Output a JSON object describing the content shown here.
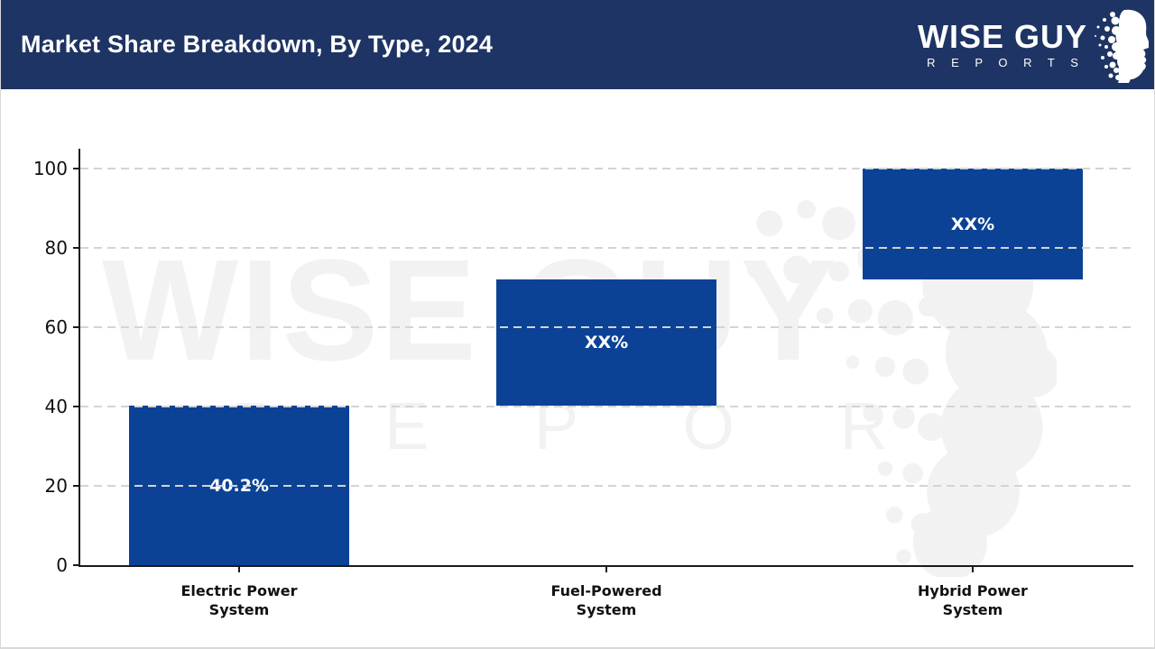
{
  "header": {
    "title": "Market Share Breakdown, By Type, 2024",
    "logo": {
      "brand_line1": "WISE GUY",
      "brand_line2": "R E P O R T S",
      "head_icon": "dotted-face-profile"
    }
  },
  "watermark": {
    "line1": "WISE GUY",
    "line2": "R E P O R T S",
    "head_icon": "dotted-face-profile"
  },
  "chart_data": {
    "type": "bar",
    "variant": "waterfall",
    "title": "Market Share Breakdown, By Type, 2024",
    "categories": [
      "Electric Power\nSystem",
      "Fuel-Powered\nSystem",
      "Hybrid Power\nSystem"
    ],
    "bars": [
      {
        "category": "Electric Power\nSystem",
        "start": 0,
        "end": 40.2,
        "label": "40.2%"
      },
      {
        "category": "Fuel-Powered\nSystem",
        "start": 40.2,
        "end": 72,
        "label": "XX%"
      },
      {
        "category": "Hybrid Power\nSystem",
        "start": 72,
        "end": 100,
        "label": "XX%"
      }
    ],
    "ylabel": "",
    "xlabel": "",
    "ylim": [
      0,
      100
    ],
    "yticks": [
      0,
      20,
      40,
      60,
      80,
      100
    ],
    "grid": "horizontal-dashed",
    "legend": "none",
    "bar_color": "#0b4296",
    "bar_label_color": "#ffffff",
    "axis_color": "#1a1a1a",
    "grid_color": "#d4d4d4"
  },
  "colors": {
    "header_bg": "#1e3464",
    "page_bg": "#ffffff",
    "watermark": "#f2f2f2",
    "border": "#d9d9d9"
  }
}
